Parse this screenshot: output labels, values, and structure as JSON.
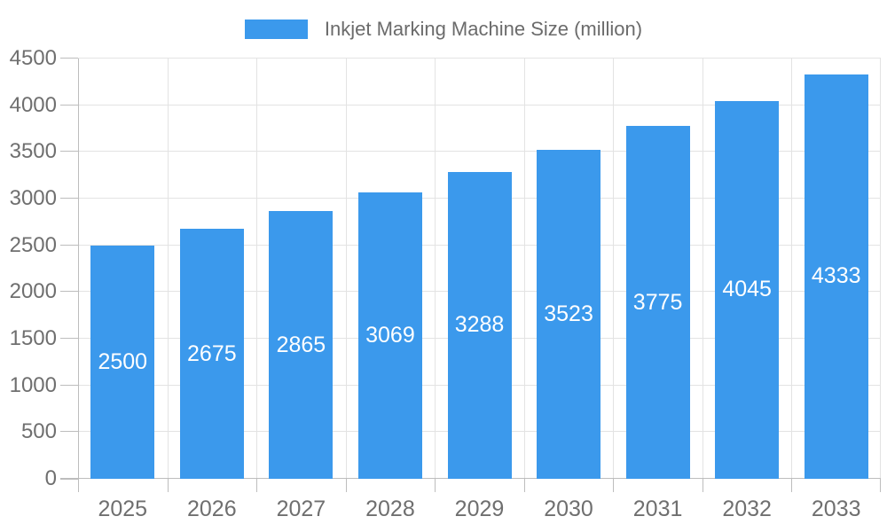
{
  "legend": {
    "label": "Inkjet Marking Machine Size (million)",
    "swatch_color": "#3b99ec"
  },
  "chart_data": {
    "type": "bar",
    "title": "",
    "xlabel": "",
    "ylabel": "",
    "categories": [
      "2025",
      "2026",
      "2027",
      "2028",
      "2029",
      "2030",
      "2031",
      "2032",
      "2033"
    ],
    "series": [
      {
        "name": "Inkjet Marking Machine Size (million)",
        "values": [
          2500,
          2675,
          2865,
          3069,
          3288,
          3523,
          3775,
          4045,
          4333
        ]
      }
    ],
    "value_labels_shown": true,
    "value_label_position": "inside-center",
    "ylim": [
      0,
      4500
    ],
    "ytick_step": 500,
    "y_ticks": [
      "0",
      "500",
      "1000",
      "1500",
      "2000",
      "2500",
      "3000",
      "3500",
      "4000",
      "4500"
    ],
    "grid": true,
    "legend_position": "top-center",
    "colors": {
      "bar": "#3b99ec",
      "gridline": "#e3e3e3",
      "axis": "#bdbdbd",
      "axis_label": "#6f6f6f",
      "value_label": "#ffffff"
    }
  }
}
